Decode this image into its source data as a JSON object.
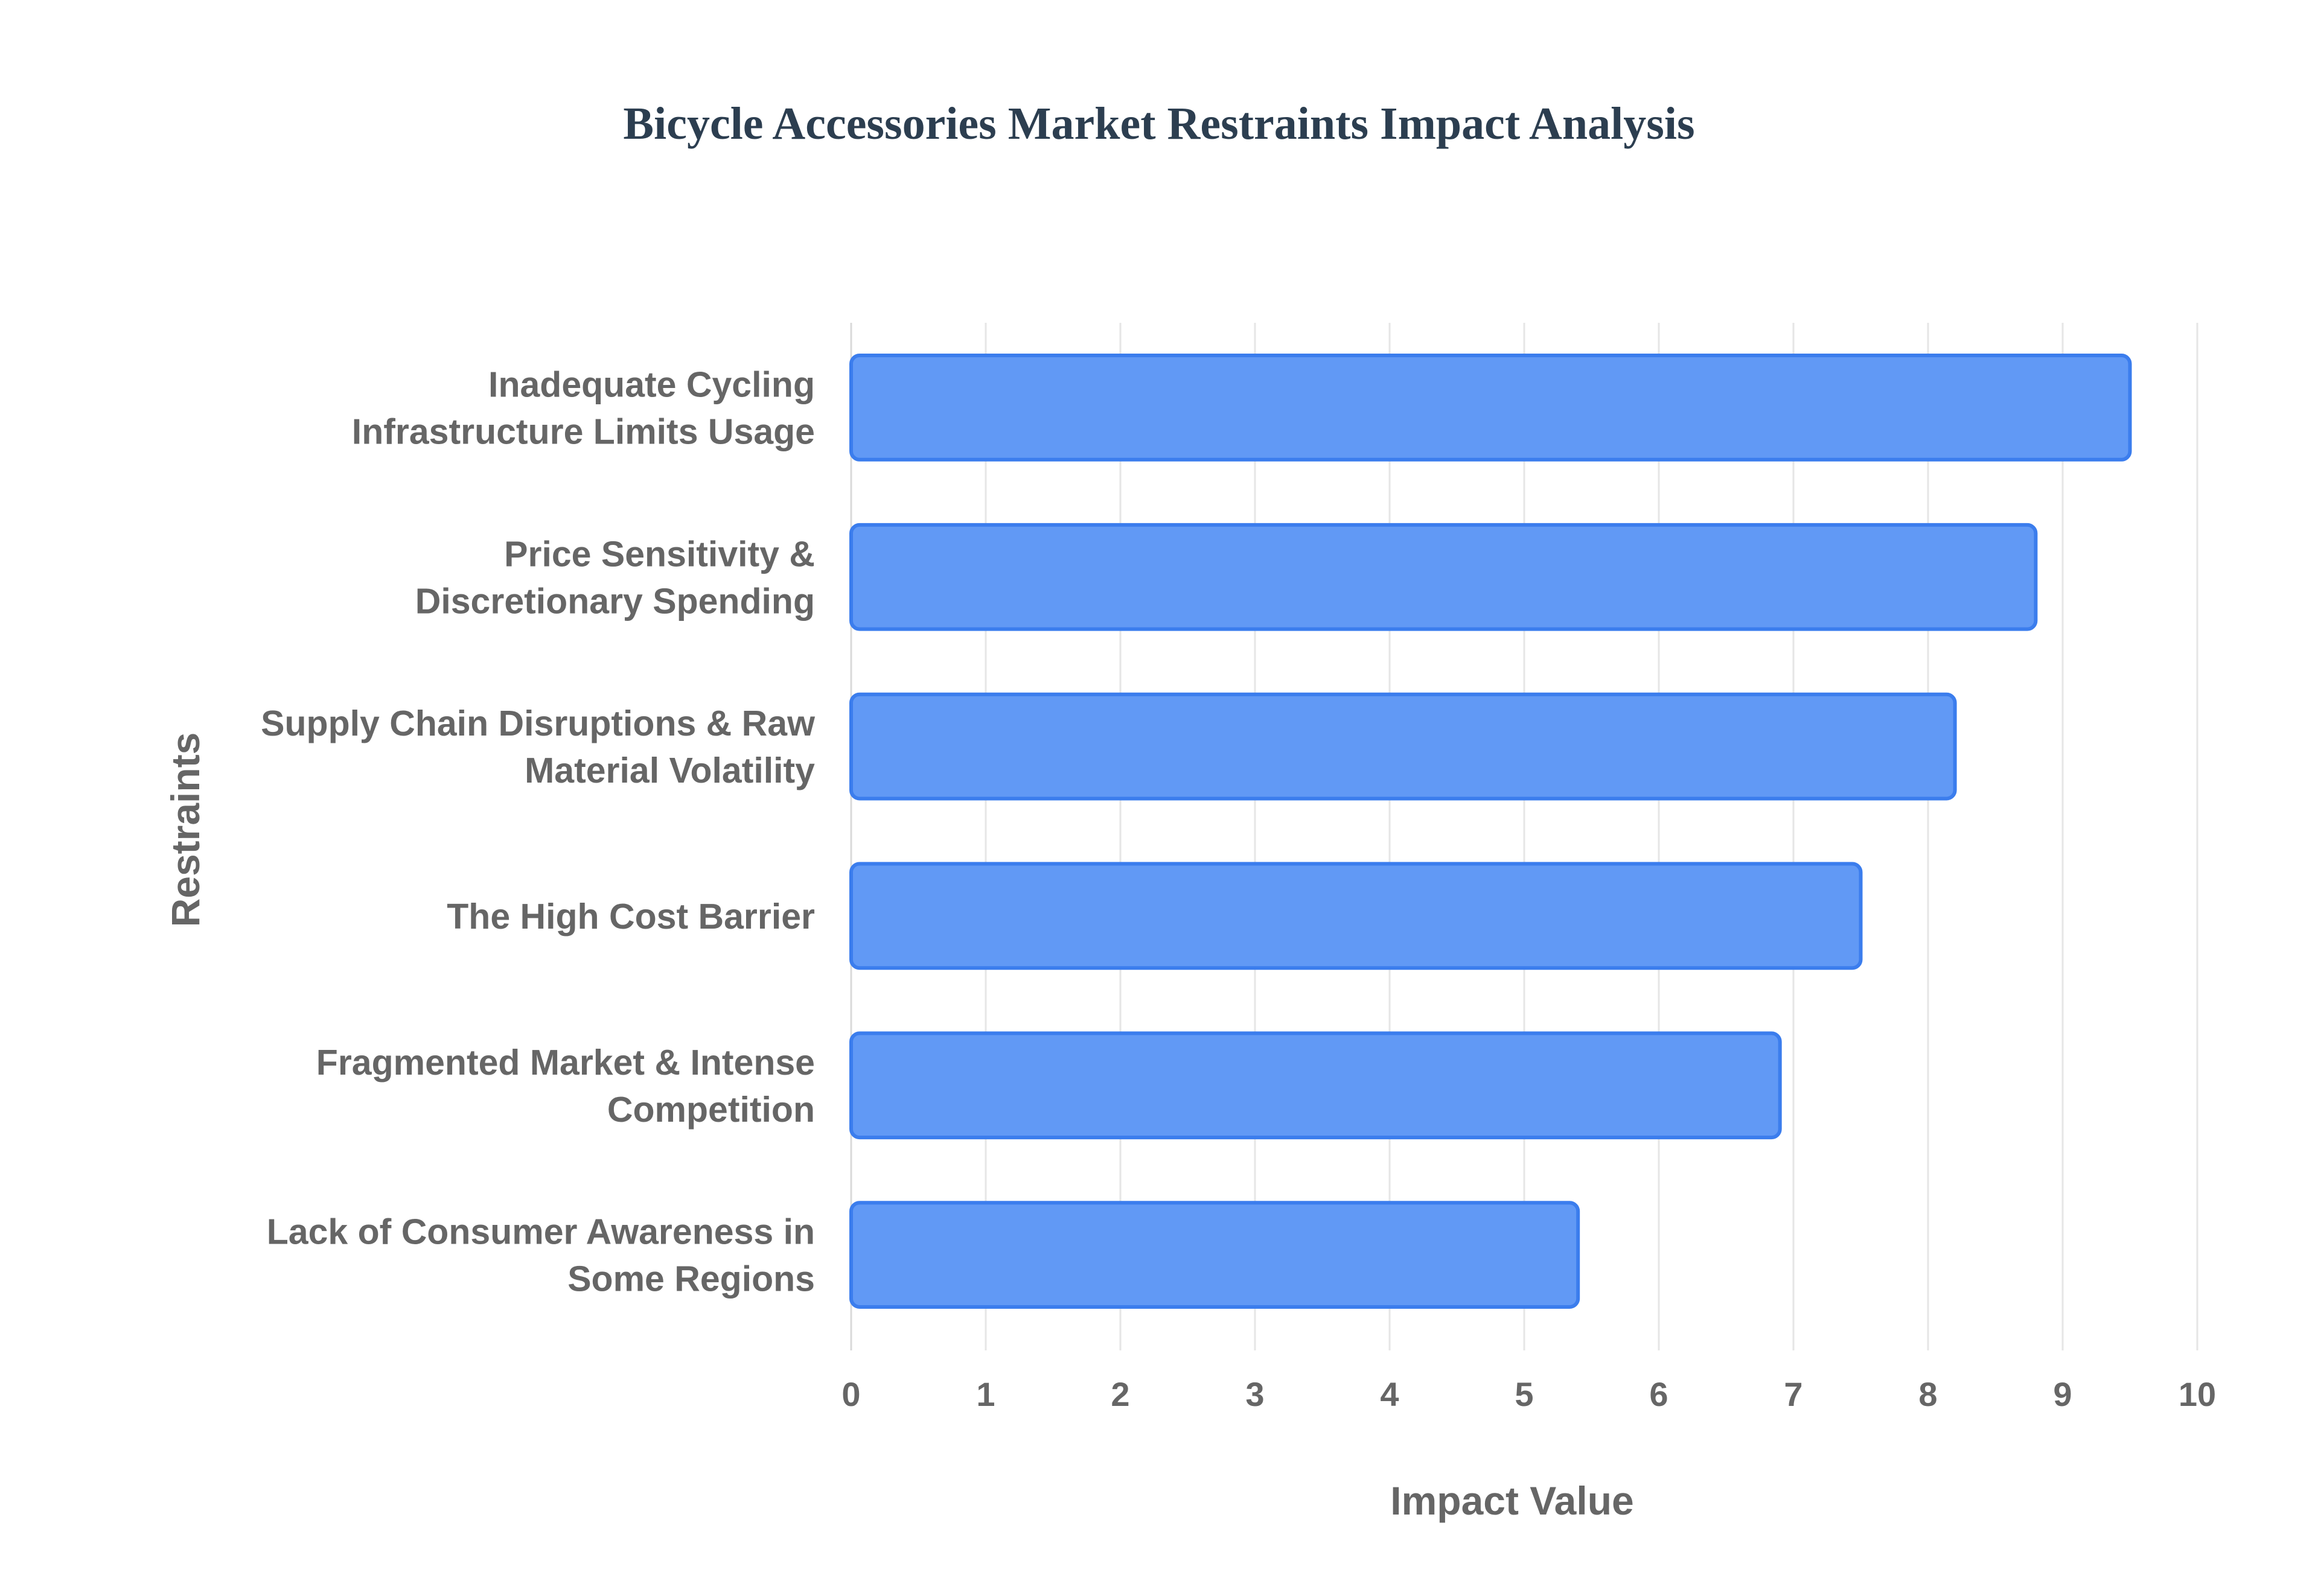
{
  "chart_data": {
    "type": "bar",
    "orientation": "horizontal",
    "title": "Bicycle Accessories Market Restraints Impact Analysis",
    "xlabel": "Impact Value",
    "ylabel": "Restraints",
    "xlim": [
      0,
      10
    ],
    "x_ticks": [
      "0",
      "1",
      "2",
      "3",
      "4",
      "5",
      "6",
      "7",
      "8",
      "9",
      "10"
    ],
    "grid": true,
    "legend": "none",
    "categories": [
      [
        "Inadequate Cycling",
        "Infrastructure Limits Usage"
      ],
      [
        "Price Sensitivity &",
        "Discretionary Spending"
      ],
      [
        "Supply Chain Disruptions & Raw",
        "Material Volatility"
      ],
      [
        "The High Cost Barrier"
      ],
      [
        "Fragmented Market & Intense",
        "Competition"
      ],
      [
        "Lack of Consumer Awareness in",
        "Some Regions"
      ]
    ],
    "values": [
      9.5,
      8.8,
      8.2,
      7.5,
      6.9,
      5.4
    ],
    "colors": {
      "bar_fill": "#6199f5",
      "bar_stroke": "#3b7ded",
      "title": "#2c3e50",
      "text": "#666666"
    }
  }
}
